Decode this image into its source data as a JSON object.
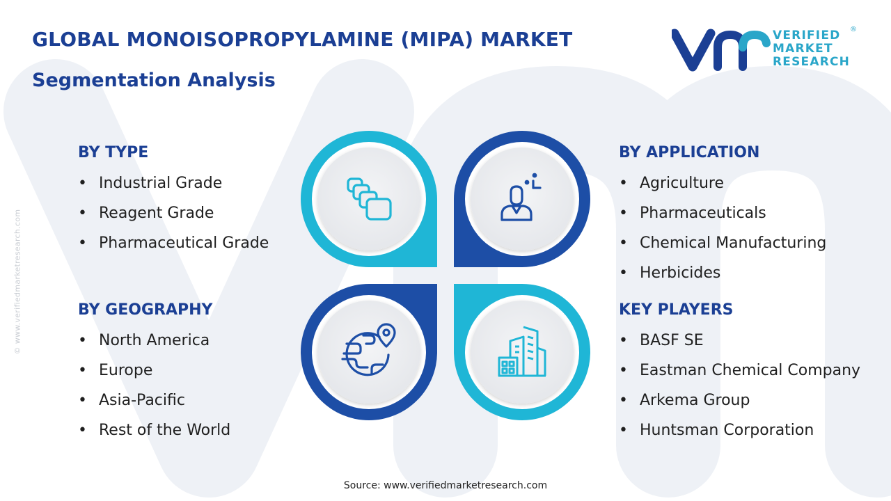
{
  "title": "GLOBAL MONOISOPROPYLAMINE (MIPA) MARKET",
  "subtitle": "Segmentation Analysis",
  "brand": {
    "lines": [
      "VERIFIED",
      "MARKET",
      "RESEARCH"
    ],
    "registered": "®",
    "side_watermark": "© www.verifiedmarketresearch.com"
  },
  "segments": {
    "type": {
      "heading": "BY TYPE",
      "items": [
        "Industrial Grade",
        "Reagent Grade",
        "Pharmaceutical Grade"
      ],
      "icon": "layered-cards-icon"
    },
    "application": {
      "heading": "BY APPLICATION",
      "items": [
        "Agriculture",
        "Pharmaceuticals",
        "Chemical Manufacturing",
        "Herbicides"
      ],
      "icon": "person-focus-icon"
    },
    "geography": {
      "heading": "BY GEOGRAPHY",
      "items": [
        "North America",
        "Europe",
        "Asia-Pacific",
        "Rest of the World"
      ],
      "icon": "globe-location-pin-icon"
    },
    "key_players": {
      "heading": "KEY PLAYERS",
      "items": [
        "BASF SE",
        "Eastman Chemical Company",
        "Arkema Group",
        "Huntsman Corporation"
      ],
      "icon": "office-buildings-icon"
    }
  },
  "source": "Source: www.verifiedmarketresearch.com",
  "colors": {
    "title": "#1b3f94",
    "accent_cyan": "#1fb6d6",
    "accent_navy": "#1d4ea6",
    "logo_navy": "#1b3f94",
    "logo_cyan": "#2aa6c9",
    "watermark": "#eef0f5"
  }
}
